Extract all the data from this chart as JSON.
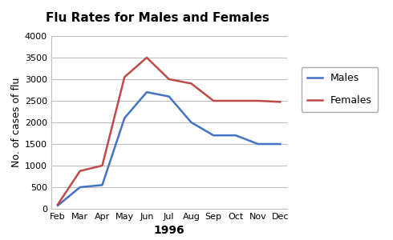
{
  "months": [
    "Feb",
    "Mar",
    "Apr",
    "May",
    "Jun",
    "Jul",
    "Aug",
    "Sep",
    "Oct",
    "Nov",
    "Dec"
  ],
  "males": [
    75,
    500,
    550,
    2100,
    2700,
    2600,
    2000,
    1700,
    1700,
    1500,
    1500
  ],
  "females": [
    100,
    875,
    1000,
    3050,
    3500,
    3000,
    2900,
    2500,
    2500,
    2500,
    2475
  ],
  "male_color": "#4472C4",
  "female_color": "#BE4B48",
  "title": "Flu Rates for Males and Females",
  "ylabel": "No. of cases of flu",
  "xlabel": "1996",
  "ylim": [
    0,
    4000
  ],
  "yticks": [
    0,
    500,
    1000,
    1500,
    2000,
    2500,
    3000,
    3500,
    4000
  ],
  "legend_labels": [
    "Males",
    "Females"
  ],
  "title_fontsize": 11,
  "axis_tick_fontsize": 8,
  "ylabel_fontsize": 9,
  "xlabel_fontsize": 10,
  "legend_fontsize": 9,
  "grid_color": "#BFBFBF",
  "bg_color": "#ffffff",
  "line_width": 1.8
}
